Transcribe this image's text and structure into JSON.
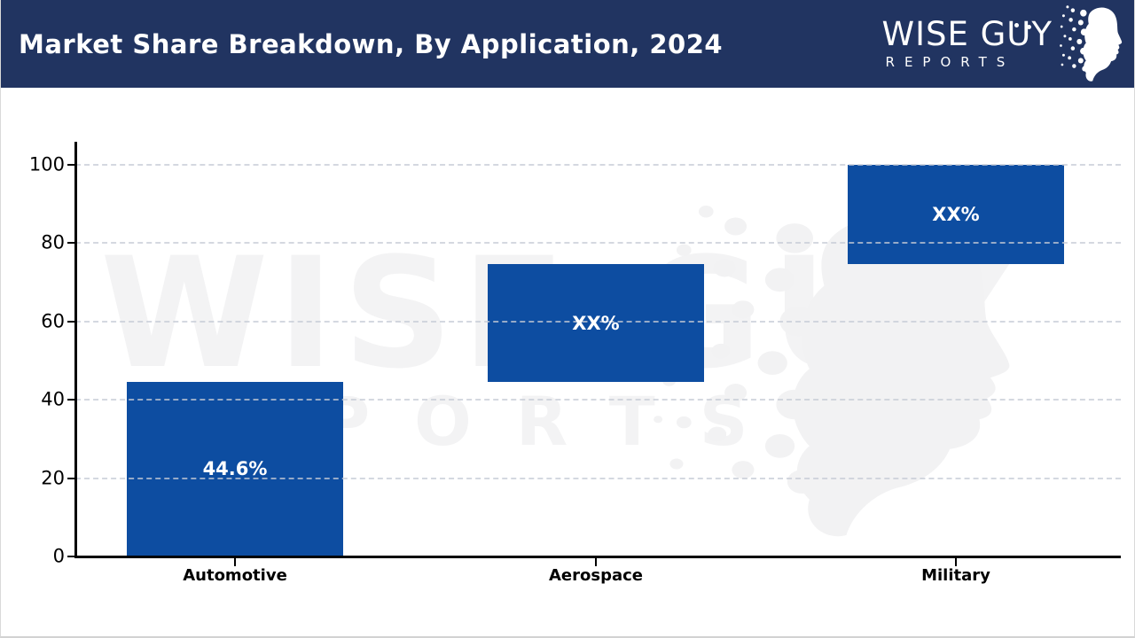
{
  "header": {
    "title": "Market Share Breakdown, By Application, 2024",
    "logo": {
      "line1": "WISE GUY",
      "line2": "REPORTS"
    }
  },
  "watermark": {
    "line1": "WISE GUY",
    "line2": "REPORTS"
  },
  "chart_data": {
    "type": "bar",
    "subtype": "waterfall",
    "title": "Market Share Breakdown, By Application, 2024",
    "categories": [
      "Automotive",
      "Aerospace",
      "Military"
    ],
    "segments": [
      {
        "category": "Automotive",
        "start": 0,
        "end": 44.6,
        "label": "44.6%"
      },
      {
        "category": "Aerospace",
        "start": 44.6,
        "end": 74.6,
        "label": "XX%"
      },
      {
        "category": "Military",
        "start": 74.6,
        "end": 100,
        "label": "XX%"
      }
    ],
    "y_ticks": [
      0,
      20,
      40,
      60,
      80,
      100
    ],
    "ylim": [
      0,
      106
    ],
    "grid": true,
    "legend": false,
    "bar_color": "#0d4da1",
    "bar_label_color": "#ffffff",
    "gridline_color": "#c6cbd5",
    "axis_color": "#000000"
  },
  "colors": {
    "header_bg": "#213461",
    "watermark": "#f3f3f4",
    "page_bg": "#ffffff"
  }
}
